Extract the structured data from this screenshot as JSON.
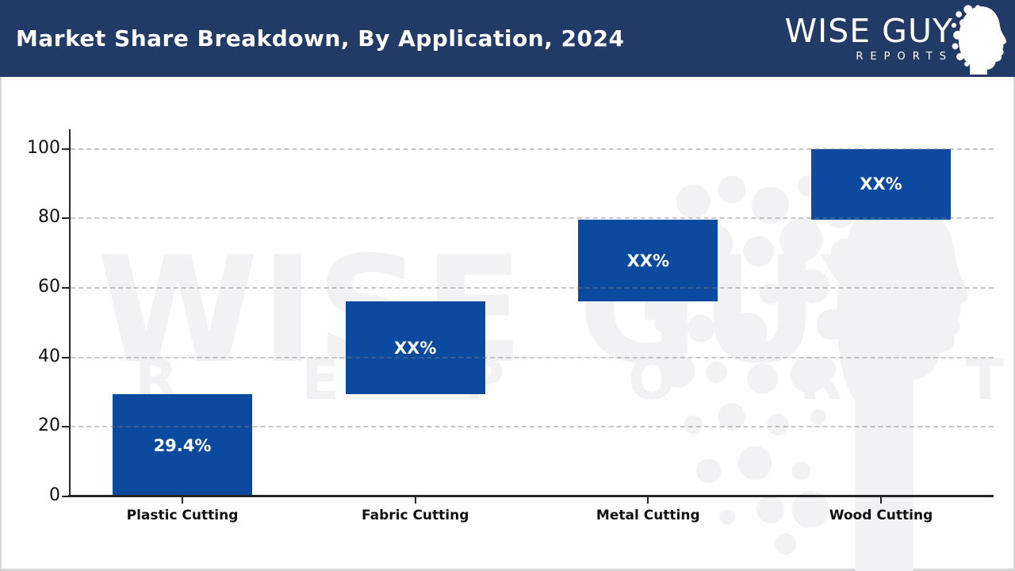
{
  "header": {
    "title": "Market Share Breakdown, By Application, 2024",
    "logo": {
      "line1": "WISE GUY",
      "line2": "REPORTS"
    }
  },
  "watermark": {
    "line1": "WISE GUY",
    "line2": "REPORTS"
  },
  "colors": {
    "header_bg": "#213a66",
    "bar_fill": "#0b4a9e",
    "bar_label_text": "#ffffff",
    "axis": "#262626",
    "tick_text": "#111111",
    "gridline": "#c9c9c9",
    "watermark": "#f2f2f4",
    "panel_border": "#d6d6d6"
  },
  "chart_data": {
    "type": "bar",
    "subtype": "waterfall",
    "title": "Market Share Breakdown, By Application, 2024",
    "categories": [
      "Plastic Cutting",
      "Fabric Cutting",
      "Metal Cutting",
      "Wood Cutting"
    ],
    "segments": [
      {
        "category": "Plastic Cutting",
        "start": 0,
        "end": 29.4,
        "label": "29.4%"
      },
      {
        "category": "Fabric Cutting",
        "start": 29.4,
        "end": 56.0,
        "label": "XX%"
      },
      {
        "category": "Metal Cutting",
        "start": 56.0,
        "end": 79.6,
        "label": "XX%"
      },
      {
        "category": "Wood Cutting",
        "start": 79.6,
        "end": 100,
        "label": "XX%"
      }
    ],
    "yticks": [
      0,
      20,
      40,
      60,
      80,
      100
    ],
    "ylim": [
      0,
      105
    ],
    "xlabel": "",
    "ylabel": "",
    "grid": "horizontal-dashed",
    "legend": "none"
  }
}
